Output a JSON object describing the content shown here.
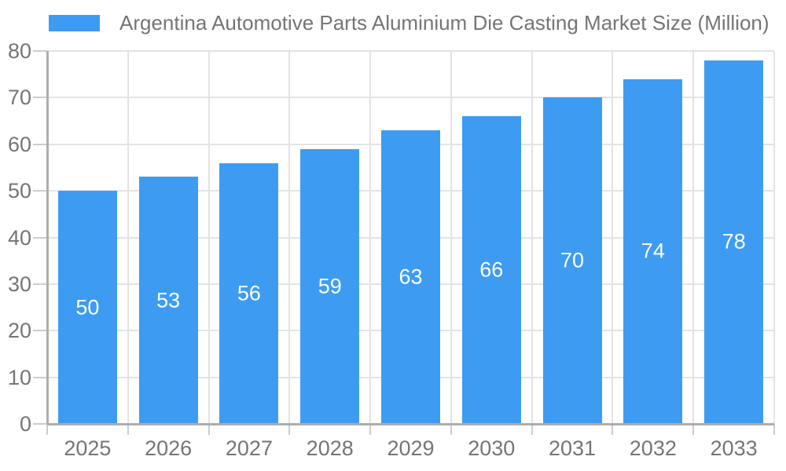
{
  "chart_data": {
    "type": "bar",
    "title": "Argentina Automotive Parts Aluminium Die Casting Market Size (Million)",
    "categories": [
      "2025",
      "2026",
      "2027",
      "2028",
      "2029",
      "2030",
      "2031",
      "2032",
      "2033"
    ],
    "values": [
      50,
      53,
      56,
      59,
      63,
      66,
      70,
      74,
      78
    ],
    "xlabel": "",
    "ylabel": "",
    "ylim": [
      0,
      80
    ],
    "yticks": [
      0,
      10,
      20,
      30,
      40,
      50,
      60,
      70,
      80
    ],
    "grid": true,
    "legend_position": "top-left",
    "bar_label_position": "center",
    "colors": {
      "bar": "#3D9CF2",
      "bar_label": "#FFFFFF",
      "axis_text": "#757575",
      "gridline": "#E3E3E3",
      "tick": "#CCCCCC",
      "axis_line": "#ADADAD",
      "background": "#FFFFFF"
    }
  },
  "legend": {
    "label": "Argentina Automotive Parts Aluminium Die Casting Market Size (Million)"
  }
}
